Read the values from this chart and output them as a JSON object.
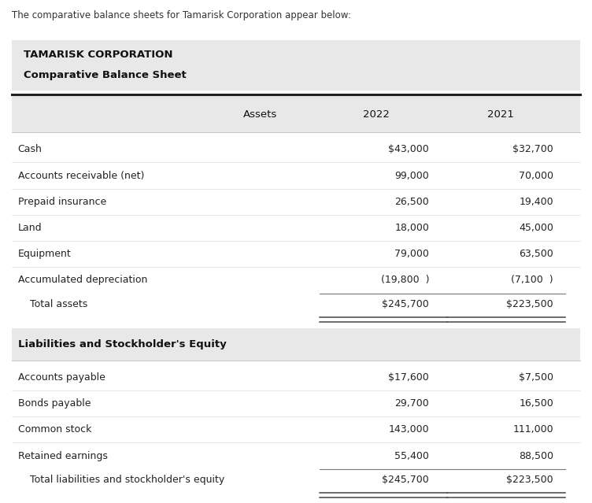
{
  "intro_text": "The comparative balance sheets for Tamarisk Corporation appear below:",
  "company_name": "TAMARISK CORPORATION",
  "sheet_title": "Comparative Balance Sheet",
  "col_headers": [
    "Assets",
    "2022",
    "2021"
  ],
  "assets_rows": [
    {
      "label": "Cash",
      "val2022": "$43,000",
      "val2021": "$32,700"
    },
    {
      "label": "Accounts receivable (net)",
      "val2022": "99,000",
      "val2021": "70,000"
    },
    {
      "label": "Prepaid insurance",
      "val2022": "26,500",
      "val2021": "19,400"
    },
    {
      "label": "Land",
      "val2022": "18,000",
      "val2021": "45,000"
    },
    {
      "label": "Equipment",
      "val2022": "79,000",
      "val2021": "63,500"
    },
    {
      "label": "Accumulated depreciation",
      "val2022": "(19,800  )",
      "val2021": "(7,100  )"
    }
  ],
  "total_assets": {
    "label": "Total assets",
    "val2022": "$245,700",
    "val2021": "$223,500"
  },
  "liabilities_section_label": "Liabilities and Stockholder's Equity",
  "liabilities_rows": [
    {
      "label": "Accounts payable",
      "val2022": "$17,600",
      "val2021": "$7,500"
    },
    {
      "label": "Bonds payable",
      "val2022": "29,700",
      "val2021": "16,500"
    },
    {
      "label": "Common stock",
      "val2022": "143,000",
      "val2021": "111,000"
    },
    {
      "label": "Retained earnings",
      "val2022": "55,400",
      "val2021": "88,500"
    }
  ],
  "total_liabilities": {
    "label": "Total liabilities and stockholder's equity",
    "val2022": "$245,700",
    "val2021": "$223,500"
  },
  "white_bg": "#ffffff",
  "header_bg": "#e8e8e8",
  "text_color": "#222222",
  "dark_color": "#111111",
  "figsize": [
    7.52,
    6.39
  ],
  "dpi": 100
}
